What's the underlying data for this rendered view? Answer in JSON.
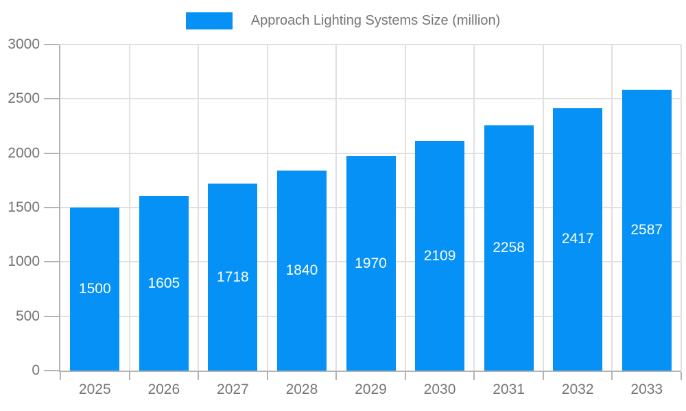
{
  "chart_data": {
    "type": "bar",
    "title": "",
    "legend": "Approach Lighting Systems Size (million)",
    "legend_position": "top",
    "categories": [
      "2025",
      "2026",
      "2027",
      "2028",
      "2029",
      "2030",
      "2031",
      "2032",
      "2033"
    ],
    "values": [
      1500,
      1605,
      1718,
      1840,
      1970,
      2109,
      2258,
      2417,
      2587
    ],
    "xlabel": "",
    "ylabel": "",
    "ylim": [
      0,
      3000
    ],
    "yticks": [
      0,
      500,
      1000,
      1500,
      2000,
      2500,
      3000
    ],
    "grid": true,
    "bar_labels_inside": true,
    "colors": {
      "bar": "#0591F5",
      "bar_label": "#ffffff",
      "grid": "#E0E0E0",
      "axis": "#B3B3B3",
      "tick_text": "#757575",
      "legend_text": "#757575",
      "background": "#ffffff"
    }
  }
}
